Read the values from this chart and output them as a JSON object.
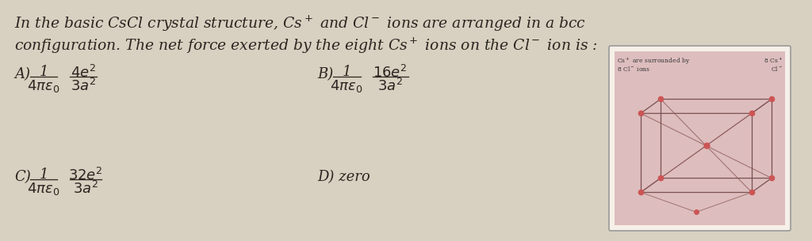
{
  "bg_color": "#d8d0c0",
  "page_color": "#f0ece4",
  "text_color": "#2a2520",
  "figsize": [
    10.24,
    3.05
  ],
  "dpi": 100,
  "title_line1": "In the basic CsCl crystal structure, Cs$^+$ and Cl$^-$ ions are arranged in a bcc",
  "title_line2": "configuration. The net force exerted by the eight Cs$^+$ ions on the Cl$^-$ ion is :",
  "box_bg": "#e8d0d0",
  "box_edge": "#aaaaaa",
  "box_small_text1": "Cs$^+$ are surrounded by",
  "box_small_text2": "8 Cl$^-$ ions",
  "box_small_text3": "8 Cs$^+$",
  "box_small_text4": "Cl$^-$"
}
